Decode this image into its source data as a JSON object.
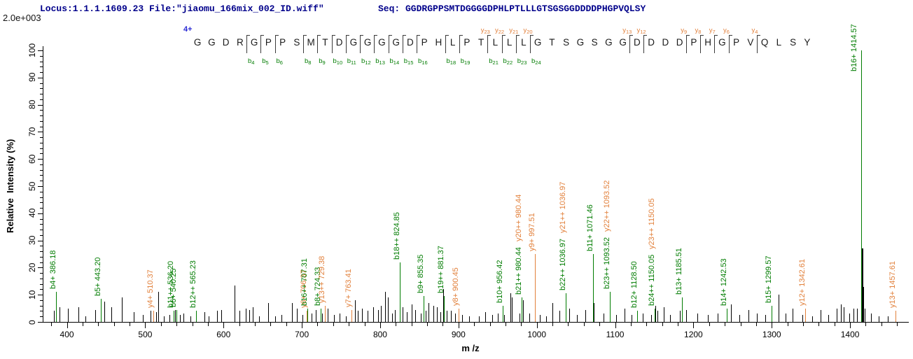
{
  "header": {
    "locus_file": "Locus:1.1.1.1609.23 File:\"jiaomu_166mix_002_ID.wiff\"",
    "sequence_line": "Seq: GGDRGPPSMTDGGGGDPHLPTLLLGTSGSGGDDDDPHGPVQLSY",
    "intensity_scale": "2.0e+003"
  },
  "colors": {
    "b_ion": "#007c00",
    "y_ion": "#e2813c",
    "peak": "#000000",
    "header_text": "#00008b",
    "charge": "#2a2ad4",
    "axis": "#000000"
  },
  "chart_data": {
    "type": "bar",
    "title": "MS/MS fragment ion spectrum",
    "xlabel": "m /z",
    "ylabel": "Relative  Intensity (%)",
    "xlim": [
      370,
      1475
    ],
    "ylim": [
      0,
      100
    ],
    "xticks": [
      400,
      500,
      600,
      700,
      800,
      900,
      1000,
      1100,
      1200,
      1300,
      1400
    ],
    "x_minor_step": 20,
    "yticks": [
      0,
      10,
      20,
      30,
      40,
      50,
      60,
      70,
      80,
      90,
      100
    ],
    "y_minor_step": 2,
    "precursor_charge": "4+",
    "peptide": "GGDRGPPSMTDGGGGDPHLPTLLLGTSGSGGDDDDPHGPVQLSY",
    "fragment_markers": [
      {
        "after": 4,
        "b": "b4"
      },
      {
        "after": 5,
        "b": "b5"
      },
      {
        "after": 6,
        "b": "b6"
      },
      {
        "after": 8,
        "b": "b8"
      },
      {
        "after": 9,
        "b": "b9"
      },
      {
        "after": 10,
        "b": "b10"
      },
      {
        "after": 11,
        "b": "b11"
      },
      {
        "after": 12,
        "b": "b12"
      },
      {
        "after": 13,
        "b": "b13"
      },
      {
        "after": 14,
        "b": "b14"
      },
      {
        "after": 15,
        "b": "b15"
      },
      {
        "after": 16,
        "b": "b16"
      },
      {
        "after": 18,
        "b": "b18"
      },
      {
        "after": 19,
        "b": "b19"
      },
      {
        "after": 21,
        "b": "b21",
        "y": "y23"
      },
      {
        "after": 22,
        "b": "b22",
        "y": "y22"
      },
      {
        "after": 23,
        "b": "b23",
        "y": "y21"
      },
      {
        "after": 24,
        "b": "b24",
        "y": "y20"
      },
      {
        "after": 31,
        "y": "y13"
      },
      {
        "after": 32,
        "y": "y12"
      },
      {
        "after": 35,
        "y": "y9"
      },
      {
        "after": 36,
        "y": "y8"
      },
      {
        "after": 37,
        "y": "y7"
      },
      {
        "after": 38,
        "y": "y6"
      },
      {
        "after": 40,
        "y": "y4"
      }
    ],
    "labeled_peaks": [
      {
        "mz": 386.18,
        "intensity": 11,
        "ion": "b",
        "label": "b4+ 386.18"
      },
      {
        "mz": 443.2,
        "intensity": 8.5,
        "ion": "b",
        "label": "b5+ 443.20"
      },
      {
        "mz": 510.37,
        "intensity": 4,
        "ion": "y",
        "label": "y4+ 510.37"
      },
      {
        "mz": 536.2,
        "intensity": 4,
        "ion": "b",
        "label": "b11++ 536.20"
      },
      {
        "mz": 540.25,
        "intensity": 4.5,
        "ion": "b",
        "label": "b6+ 540.25"
      },
      {
        "mz": 565.23,
        "intensity": 4,
        "ion": "b",
        "label": "b12++ 565.23"
      },
      {
        "mz": 706.37,
        "intensity": 4,
        "ion": "y",
        "label": "y6+ 706.37"
      },
      {
        "mz": 707.31,
        "intensity": 5,
        "ion": "b",
        "label": "b16++ 707.31"
      },
      {
        "mz": 724.33,
        "intensity": 5,
        "ion": "b",
        "label": "b8+ 724.33"
      },
      {
        "mz": 729.38,
        "intensity": 6,
        "ion": "y",
        "label": "y13++ 729.38"
      },
      {
        "mz": 763.41,
        "intensity": 4.5,
        "ion": "y",
        "label": "y7+ 763.41"
      },
      {
        "mz": 824.85,
        "intensity": 22,
        "ion": "b",
        "label": "b18++ 824.85"
      },
      {
        "mz": 855.35,
        "intensity": 9.5,
        "ion": "b",
        "label": "b9+ 855.35"
      },
      {
        "mz": 881.37,
        "intensity": 9.5,
        "ion": "b",
        "label": "b19++ 881.37"
      },
      {
        "mz": 900.45,
        "intensity": 5,
        "ion": "y",
        "label": "y8+ 900.45"
      },
      {
        "mz": 956.42,
        "intensity": 6,
        "ion": "b",
        "label": "b10+ 956.42"
      },
      {
        "mz": 980.44,
        "intensity": 9,
        "ion": "b",
        "label": "b21++ 980.44",
        "label2": {
          "ion": "y",
          "text": "y20++ 980.44"
        }
      },
      {
        "mz": 997.51,
        "intensity": 25,
        "ion": "y",
        "label": "y9+ 997.51"
      },
      {
        "mz": 1036.97,
        "intensity": 10.5,
        "ion": "b",
        "label": "b22++ 1036.97",
        "label2": {
          "ion": "y",
          "text": "y21++ 1036.97"
        }
      },
      {
        "mz": 1071.46,
        "intensity": 25,
        "ion": "b",
        "label": "b11+ 1071.46"
      },
      {
        "mz": 1093.52,
        "intensity": 11,
        "ion": "b",
        "label": "b23++ 1093.52",
        "label2": {
          "ion": "y",
          "text": "y22++ 1093.52"
        }
      },
      {
        "mz": 1128.5,
        "intensity": 4,
        "ion": "b",
        "label": "b12+ 1128.50"
      },
      {
        "mz": 1150.05,
        "intensity": 5,
        "ion": "b",
        "label": "b24++ 1150.05",
        "label2": {
          "ion": "y",
          "text": "y23++ 1150.05"
        }
      },
      {
        "mz": 1185.51,
        "intensity": 9,
        "ion": "b",
        "label": "b13+ 1185.51"
      },
      {
        "mz": 1242.53,
        "intensity": 5,
        "ion": "b",
        "label": "b14+ 1242.53"
      },
      {
        "mz": 1299.57,
        "intensity": 6,
        "ion": "b",
        "label": "b15+ 1299.57"
      },
      {
        "mz": 1342.61,
        "intensity": 5,
        "ion": "y",
        "label": "y12+ 1342.61"
      },
      {
        "mz": 1414.57,
        "intensity": 100,
        "ion": "b",
        "label": "b16+ 1414.57",
        "label_pos": "left"
      },
      {
        "mz": 1457.61,
        "intensity": 4,
        "ion": "y",
        "label": "y13+ 1457.61"
      }
    ],
    "unlabeled_peaks": [
      [
        383,
        4
      ],
      [
        391,
        5.5
      ],
      [
        401,
        5
      ],
      [
        415,
        5.5
      ],
      [
        424,
        2
      ],
      [
        436,
        4.5
      ],
      [
        448,
        7.5
      ],
      [
        457,
        5.5
      ],
      [
        470,
        9
      ],
      [
        485,
        3.5
      ],
      [
        497,
        2.5
      ],
      [
        507,
        4
      ],
      [
        514,
        3.5
      ],
      [
        517,
        11
      ],
      [
        524,
        2
      ],
      [
        531,
        2.5
      ],
      [
        538,
        4.5
      ],
      [
        544,
        2.5
      ],
      [
        549,
        3
      ],
      [
        558,
        2
      ],
      [
        576,
        3.5
      ],
      [
        581,
        2
      ],
      [
        592,
        4
      ],
      [
        597,
        4.5
      ],
      [
        614,
        13.5
      ],
      [
        620,
        4
      ],
      [
        628,
        5
      ],
      [
        633,
        4.5
      ],
      [
        637,
        5.5
      ],
      [
        645,
        2
      ],
      [
        657,
        7
      ],
      [
        666,
        2
      ],
      [
        674,
        2.5
      ],
      [
        687,
        7
      ],
      [
        694,
        5
      ],
      [
        701,
        2.5
      ],
      [
        712,
        3
      ],
      [
        718,
        4.5
      ],
      [
        726,
        3
      ],
      [
        733,
        5
      ],
      [
        741,
        2.5
      ],
      [
        748,
        3
      ],
      [
        756,
        2
      ],
      [
        768,
        8
      ],
      [
        771,
        4
      ],
      [
        777,
        5
      ],
      [
        784,
        4
      ],
      [
        791,
        5.5
      ],
      [
        797,
        4.5
      ],
      [
        801,
        6
      ],
      [
        806,
        11
      ],
      [
        810,
        9
      ],
      [
        815,
        3
      ],
      [
        819,
        4.5
      ],
      [
        829,
        5.5
      ],
      [
        834,
        3.5
      ],
      [
        840,
        6.5
      ],
      [
        845,
        4.5
      ],
      [
        852,
        3
      ],
      [
        858,
        4
      ],
      [
        862,
        7
      ],
      [
        868,
        6
      ],
      [
        872,
        5.5
      ],
      [
        877,
        3.5
      ],
      [
        880.6,
        12
      ],
      [
        885,
        4
      ],
      [
        890,
        4
      ],
      [
        896,
        3
      ],
      [
        905,
        2.5
      ],
      [
        914,
        2
      ],
      [
        926,
        2
      ],
      [
        934,
        3.5
      ],
      [
        943,
        2.5
      ],
      [
        950,
        3
      ],
      [
        958,
        2.5
      ],
      [
        966,
        10.5
      ],
      [
        968,
        9
      ],
      [
        978,
        3
      ],
      [
        982,
        8
      ],
      [
        990,
        3
      ],
      [
        1004,
        2.5
      ],
      [
        1012,
        2
      ],
      [
        1020,
        7
      ],
      [
        1029,
        4
      ],
      [
        1041,
        5
      ],
      [
        1051,
        2.5
      ],
      [
        1062,
        4.5
      ],
      [
        1073,
        7
      ],
      [
        1085,
        3
      ],
      [
        1101,
        2.5
      ],
      [
        1112,
        5
      ],
      [
        1121,
        2.5
      ],
      [
        1135,
        3
      ],
      [
        1146,
        2.5
      ],
      [
        1151,
        6
      ],
      [
        1154,
        4
      ],
      [
        1162,
        5.5
      ],
      [
        1170,
        2.5
      ],
      [
        1183,
        4
      ],
      [
        1191,
        4.5
      ],
      [
        1205,
        3
      ],
      [
        1218,
        2.5
      ],
      [
        1231,
        3
      ],
      [
        1248,
        6.5
      ],
      [
        1259,
        2.5
      ],
      [
        1270,
        4.5
      ],
      [
        1281,
        3
      ],
      [
        1292,
        2.5
      ],
      [
        1309,
        10
      ],
      [
        1318,
        3
      ],
      [
        1327,
        5
      ],
      [
        1339,
        2.5
      ],
      [
        1352,
        2
      ],
      [
        1362,
        4.5
      ],
      [
        1372,
        2.5
      ],
      [
        1383,
        5
      ],
      [
        1388,
        6.5
      ],
      [
        1392,
        5.5
      ],
      [
        1399,
        3
      ],
      [
        1404,
        5
      ],
      [
        1409,
        5
      ],
      [
        1415.4,
        27,
        3
      ],
      [
        1417,
        13
      ],
      [
        1419,
        5
      ],
      [
        1427,
        3
      ],
      [
        1437,
        2
      ],
      [
        1448,
        2
      ]
    ]
  }
}
